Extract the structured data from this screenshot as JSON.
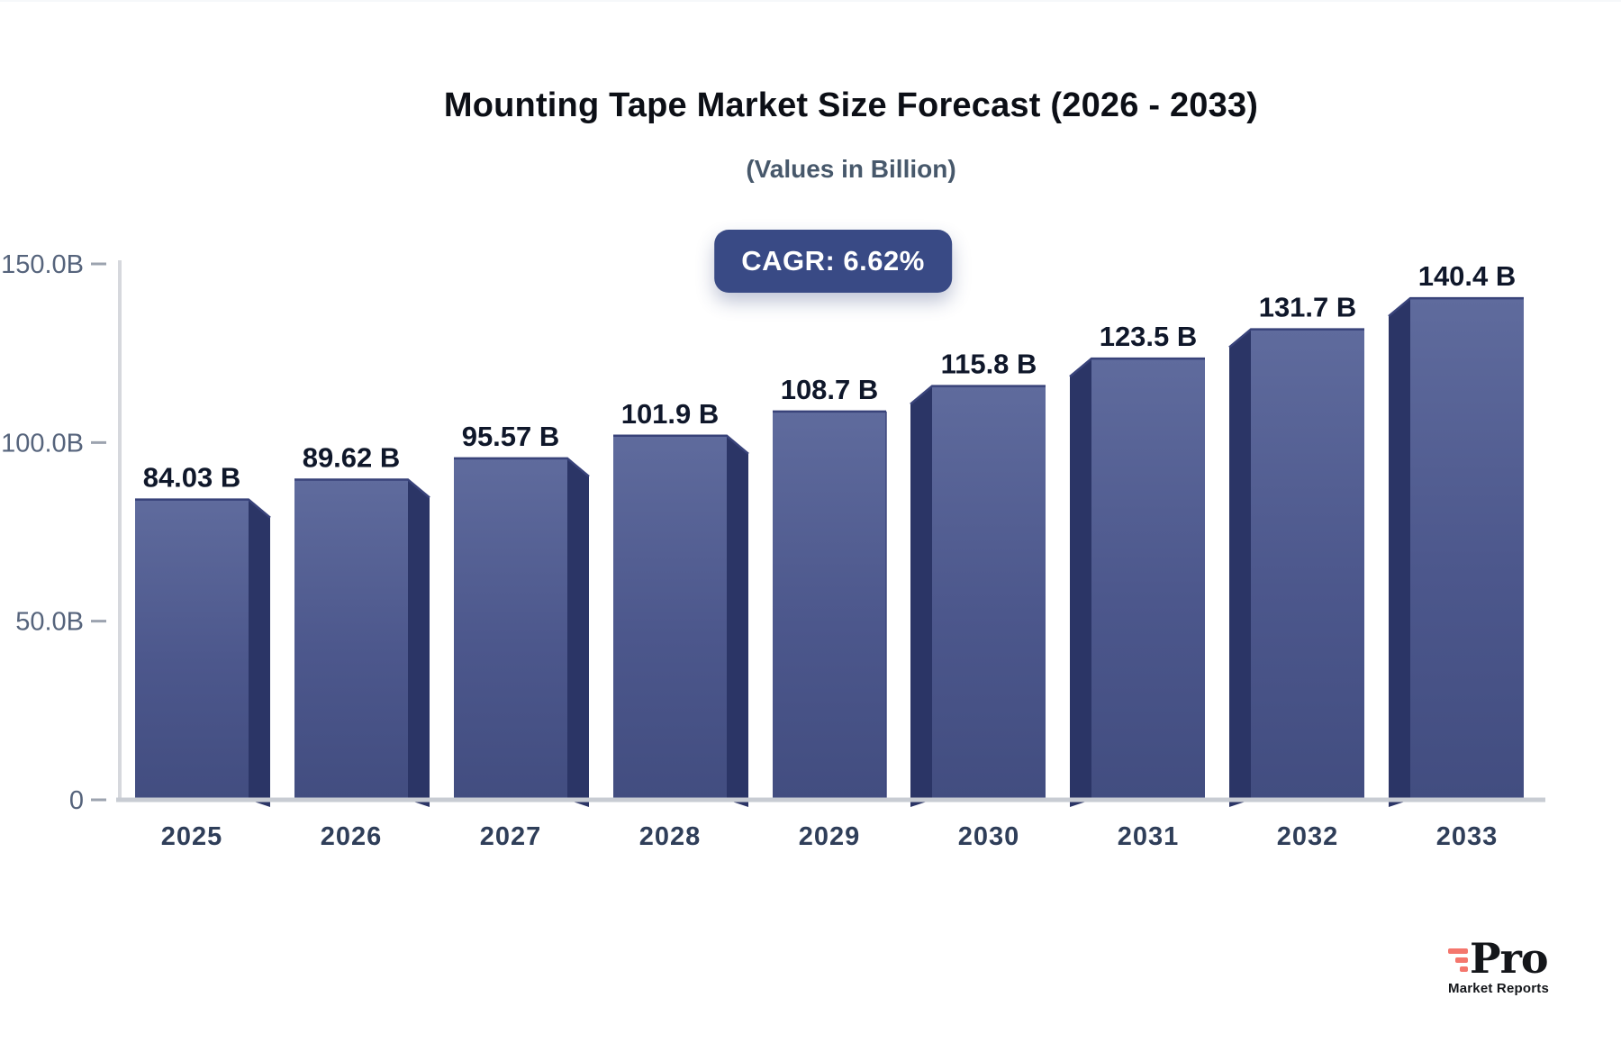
{
  "chart_data": {
    "type": "bar",
    "title": "Mounting Tape Market Size Forecast (2026 - 2033)",
    "subtitle": "(Values in Billion)",
    "cagr_badge": "CAGR: 6.62%",
    "categories": [
      "2025",
      "2026",
      "2027",
      "2028",
      "2029",
      "2030",
      "2031",
      "2032",
      "2033"
    ],
    "values": [
      84.03,
      89.62,
      95.57,
      101.9,
      108.7,
      115.8,
      123.5,
      131.7,
      140.4
    ],
    "value_labels": [
      "84.03 B",
      "89.62 B",
      "95.57 B",
      "101.9 B",
      "108.7 B",
      "115.8 B",
      "123.5 B",
      "131.7 B",
      "140.4 B"
    ],
    "xlabel": "",
    "ylabel": "",
    "ylim": [
      0,
      150
    ],
    "yticks": [
      {
        "value": 150,
        "label": "150.0B"
      },
      {
        "value": 100,
        "label": "100.0B"
      },
      {
        "value": 50,
        "label": "50.0B"
      },
      {
        "value": 0,
        "label": "0"
      }
    ],
    "grid": false,
    "legend_position": "none",
    "bar_style": "3d-perspective",
    "colors": {
      "bar_face_top": "#5f6b9d",
      "bar_face_mid": "#4c578c",
      "bar_face_bottom": "#424d80",
      "bar_side": "#2b3566",
      "bar_top_edge": "#39437a",
      "badge_bg": "#394a85",
      "badge_text": "#ffffff",
      "axis_line": "#c8ccd3",
      "yaxis_line": "#d6d8dd",
      "tick_mark": "#9ca3af",
      "ytick_text": "#56647c",
      "year_text": "#2f3e59",
      "value_text": "#0f172a"
    }
  },
  "logo": {
    "name": "Pro",
    "tagline": "Market Reports",
    "accent": "#f4766d"
  }
}
